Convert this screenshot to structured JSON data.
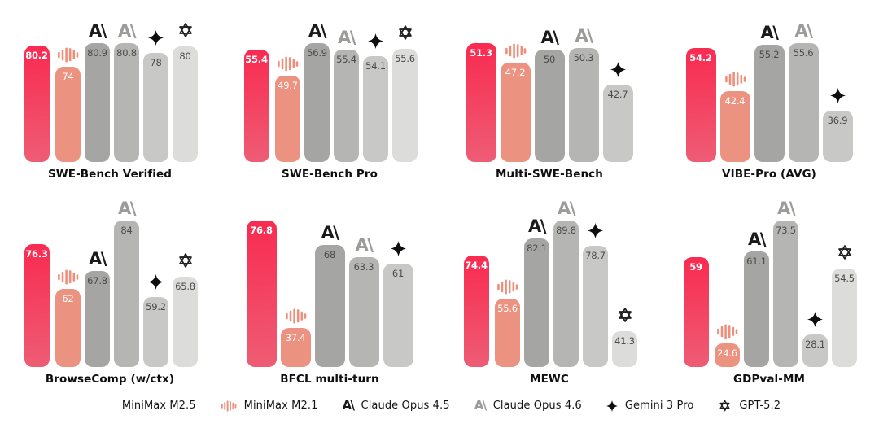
{
  "page": {
    "background": "#ffffff"
  },
  "models": [
    {
      "id": "minimax-m2-5",
      "label": "MiniMax M2.5",
      "icon": "minimax-waveform-icon",
      "icon_colors": [
        "#e9236b",
        "#f44542",
        "#fc9150"
      ],
      "bar_gradient": [
        "#f92a50",
        "#ee5d75"
      ],
      "value_color": "#ffffff",
      "value_bold": true
    },
    {
      "id": "minimax-m2-1",
      "label": "MiniMax M2.1",
      "icon": "minimax-waveform-icon",
      "icon_colors": [
        "#ee8f7b"
      ],
      "bar_color": "#EC9280",
      "value_color": "#ffffff",
      "value_bold": false
    },
    {
      "id": "claude-opus-4-5",
      "label": "Claude Opus 4.5",
      "icon": "anthropic-logomark-icon",
      "icon_color": "#1a1a1a",
      "bar_color": "#A5A5A3",
      "value_color": "#4c4c4c",
      "value_bold": false
    },
    {
      "id": "claude-opus-4-6",
      "label": "Claude Opus 4.6",
      "icon": "anthropic-logomark-icon",
      "icon_color": "#9b9b99",
      "bar_color": "#B5B5B3",
      "value_color": "#4c4c4c",
      "value_bold": false
    },
    {
      "id": "gemini-3-pro",
      "label": "Gemini 3 Pro",
      "icon": "gemini-star-icon",
      "icon_color": "#0e0e0e",
      "bar_color": "#C8C8C6",
      "value_color": "#4c4c4c",
      "value_bold": false
    },
    {
      "id": "gpt-5-2",
      "label": "GPT-5.2",
      "icon": "openai-logo-icon",
      "icon_color": "#212121",
      "bar_color": "#DCDCDA",
      "value_color": "#4c4c4c",
      "value_bold": false
    }
  ],
  "chart_data": [
    {
      "type": "bar",
      "title": "SWE-Bench Verified",
      "legend_position": "bottom",
      "grid": false,
      "series": [
        {
          "name": "MiniMax M2.5",
          "model": "minimax-m2-5",
          "value": 80.2
        },
        {
          "name": "MiniMax M2.1",
          "model": "minimax-m2-1",
          "value": 74
        },
        {
          "name": "Claude Opus 4.5",
          "model": "claude-opus-4-5",
          "value": 80.9
        },
        {
          "name": "Claude Opus 4.6",
          "model": "claude-opus-4-6",
          "value": 80.8
        },
        {
          "name": "Gemini 3 Pro",
          "model": "gemini-3-pro",
          "value": 78
        },
        {
          "name": "GPT-5.2",
          "model": "gpt-5-2",
          "value": 80
        }
      ]
    },
    {
      "type": "bar",
      "title": "SWE-Bench Pro",
      "legend_position": "bottom",
      "grid": false,
      "series": [
        {
          "name": "MiniMax M2.5",
          "model": "minimax-m2-5",
          "value": 55.4
        },
        {
          "name": "MiniMax M2.1",
          "model": "minimax-m2-1",
          "value": 49.7
        },
        {
          "name": "Claude Opus 4.5",
          "model": "claude-opus-4-5",
          "value": 56.9
        },
        {
          "name": "Claude Opus 4.6",
          "model": "claude-opus-4-6",
          "value": 55.4
        },
        {
          "name": "Gemini 3 Pro",
          "model": "gemini-3-pro",
          "value": 54.1
        },
        {
          "name": "GPT-5.2",
          "model": "gpt-5-2",
          "value": 55.6
        }
      ]
    },
    {
      "type": "bar",
      "title": "Multi-SWE-Bench",
      "legend_position": "bottom",
      "grid": false,
      "series": [
        {
          "name": "MiniMax M2.5",
          "model": "minimax-m2-5",
          "value": 51.3
        },
        {
          "name": "MiniMax M2.1",
          "model": "minimax-m2-1",
          "value": 47.2
        },
        {
          "name": "Claude Opus 4.5",
          "model": "claude-opus-4-5",
          "value": 50
        },
        {
          "name": "Claude Opus 4.6",
          "model": "claude-opus-4-6",
          "value": 50.3
        },
        {
          "name": "Gemini 3 Pro",
          "model": "gemini-3-pro",
          "value": 42.7
        }
      ]
    },
    {
      "type": "bar",
      "title": "VIBE-Pro (AVG)",
      "legend_position": "bottom",
      "grid": false,
      "series": [
        {
          "name": "MiniMax M2.5",
          "model": "minimax-m2-5",
          "value": 54.2
        },
        {
          "name": "MiniMax M2.1",
          "model": "minimax-m2-1",
          "value": 42.4
        },
        {
          "name": "Claude Opus 4.5",
          "model": "claude-opus-4-5",
          "value": 55.2
        },
        {
          "name": "Claude Opus 4.6",
          "model": "claude-opus-4-6",
          "value": 55.6
        },
        {
          "name": "Gemini 3 Pro",
          "model": "gemini-3-pro",
          "value": 36.9
        }
      ]
    },
    {
      "type": "bar",
      "title": "BrowseComp (w/ctx)",
      "legend_position": "bottom",
      "grid": false,
      "series": [
        {
          "name": "MiniMax M2.5",
          "model": "minimax-m2-5",
          "value": 76.3
        },
        {
          "name": "MiniMax M2.1",
          "model": "minimax-m2-1",
          "value": 62
        },
        {
          "name": "Claude Opus 4.5",
          "model": "claude-opus-4-5",
          "value": 67.8
        },
        {
          "name": "Claude Opus 4.6",
          "model": "claude-opus-4-6",
          "value": 84
        },
        {
          "name": "Gemini 3 Pro",
          "model": "gemini-3-pro",
          "value": 59.2
        },
        {
          "name": "GPT-5.2",
          "model": "gpt-5-2",
          "value": 65.8
        }
      ]
    },
    {
      "type": "bar",
      "title": "BFCL multi-turn",
      "legend_position": "bottom",
      "grid": false,
      "series": [
        {
          "name": "MiniMax M2.5",
          "model": "minimax-m2-5",
          "value": 76.8
        },
        {
          "name": "MiniMax M2.1",
          "model": "minimax-m2-1",
          "value": 37.4
        },
        {
          "name": "Claude Opus 4.5",
          "model": "claude-opus-4-5",
          "value": 68
        },
        {
          "name": "Claude Opus 4.6",
          "model": "claude-opus-4-6",
          "value": 63.3
        },
        {
          "name": "Gemini 3 Pro",
          "model": "gemini-3-pro",
          "value": 61
        }
      ]
    },
    {
      "type": "bar",
      "title": "MEWC",
      "legend_position": "bottom",
      "grid": false,
      "series": [
        {
          "name": "MiniMax M2.5",
          "model": "minimax-m2-5",
          "value": 74.4
        },
        {
          "name": "MiniMax M2.1",
          "model": "minimax-m2-1",
          "value": 55.6
        },
        {
          "name": "Claude Opus 4.5",
          "model": "claude-opus-4-5",
          "value": 82.1
        },
        {
          "name": "Claude Opus 4.6",
          "model": "claude-opus-4-6",
          "value": 89.8
        },
        {
          "name": "Gemini 3 Pro",
          "model": "gemini-3-pro",
          "value": 78.7
        },
        {
          "name": "GPT-5.2",
          "model": "gpt-5-2",
          "value": 41.3
        }
      ]
    },
    {
      "type": "bar",
      "title": "GDPval-MM",
      "legend_position": "bottom",
      "grid": false,
      "series": [
        {
          "name": "MiniMax M2.5",
          "model": "minimax-m2-5",
          "value": 59
        },
        {
          "name": "MiniMax M2.1",
          "model": "minimax-m2-1",
          "value": 24.6
        },
        {
          "name": "Claude Opus 4.5",
          "model": "claude-opus-4-5",
          "value": 61.1
        },
        {
          "name": "Claude Opus 4.6",
          "model": "claude-opus-4-6",
          "value": 73.5
        },
        {
          "name": "Gemini 3 Pro",
          "model": "gemini-3-pro",
          "value": 28.1
        },
        {
          "name": "GPT-5.2",
          "model": "gpt-5-2",
          "value": 54.5
        }
      ]
    }
  ]
}
